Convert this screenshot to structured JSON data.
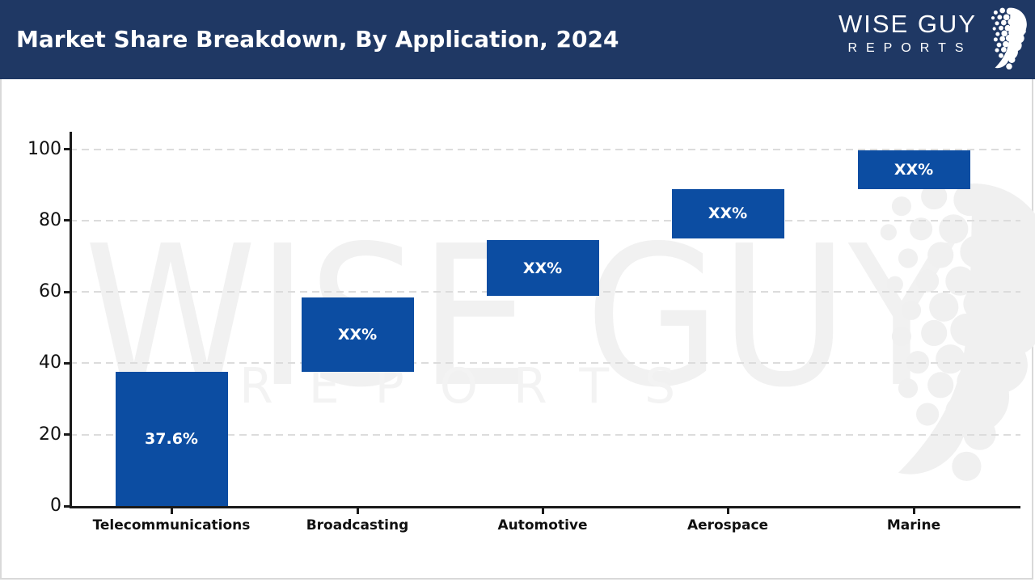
{
  "header": {
    "title": "Market Share Breakdown, By Application, 2024",
    "logo": {
      "line1": "WISE GUY",
      "line2": "REPORTS"
    }
  },
  "watermark": {
    "line1": "WISE GUY",
    "line2": "REPORTS"
  },
  "colors": {
    "header_bg": "#1f3864",
    "bar": "#0c4da2",
    "grid": "#dcdcdc",
    "axis": "#1a1a1a",
    "bar_label": "#ffffff",
    "watermark": "#f1f1f1"
  },
  "chart_data": {
    "type": "bar",
    "subtype": "waterfall",
    "title": "Market Share Breakdown, By Application, 2024",
    "xlabel": "",
    "ylabel": "",
    "categories": [
      "Telecommunications",
      "Broadcasting",
      "Automotive",
      "Aerospace",
      "Marine"
    ],
    "segments": [
      {
        "category": "Telecommunications",
        "start": 0,
        "end": 37.6,
        "label": "37.6%"
      },
      {
        "category": "Broadcasting",
        "start": 37.7,
        "end": 58.5,
        "label": "XX%"
      },
      {
        "category": "Automotive",
        "start": 58.8,
        "end": 74.6,
        "label": "XX%"
      },
      {
        "category": "Aerospace",
        "start": 75.0,
        "end": 88.8,
        "label": "XX%"
      },
      {
        "category": "Marine",
        "start": 88.8,
        "end": 99.7,
        "label": "XX%"
      }
    ],
    "y_ticks": [
      0,
      20,
      40,
      60,
      80,
      100
    ],
    "ylim": [
      0,
      105
    ],
    "grid": "horizontal-dashed",
    "legend": "none",
    "bar_color": "#0c4da2",
    "label_color": "#ffffff"
  }
}
